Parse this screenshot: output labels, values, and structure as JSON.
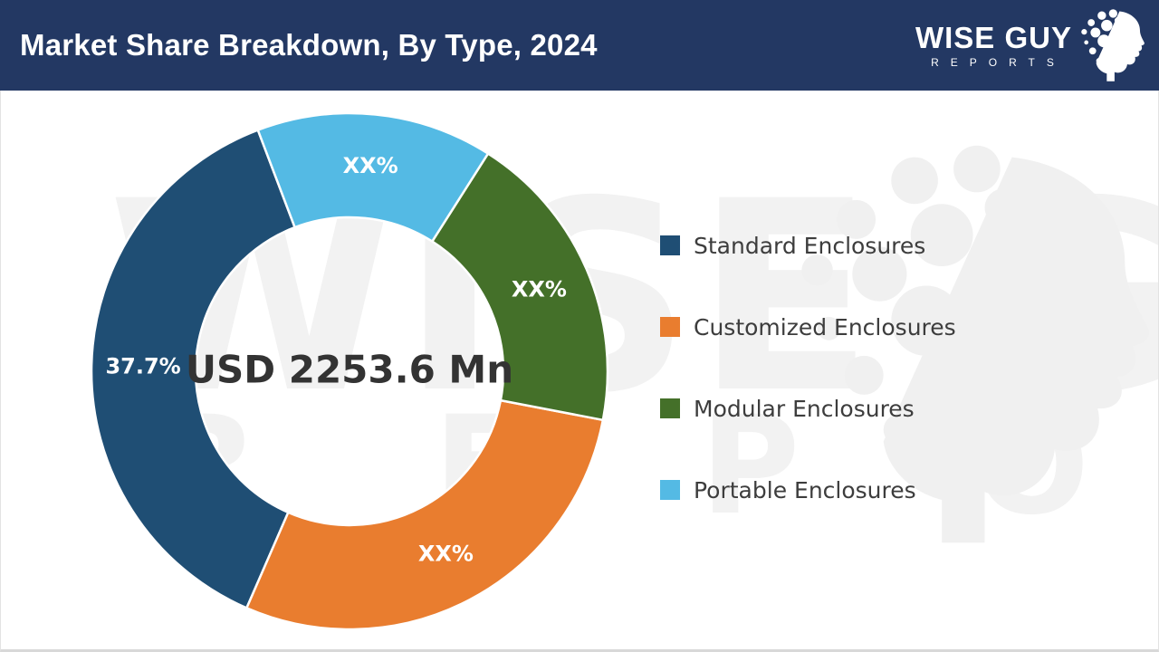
{
  "header": {
    "title": "Market Share Breakdown, By Type, 2024",
    "bg_color": "#233863",
    "logo": {
      "line1": "WISE GUY",
      "line2": "REPORTS"
    }
  },
  "chart_data": {
    "type": "donut",
    "title": "Market Share Breakdown, By Type, 2024",
    "center_label": "USD 2253.6 Mn",
    "start_angle_deg": 110.8,
    "direction": "counterclockwise",
    "legend_position": "right",
    "series": [
      {
        "name": "Standard Enclosures",
        "value_pct": 37.7,
        "label": "37.7%",
        "color": "#1F4E74"
      },
      {
        "name": "Customized Enclosures",
        "value_pct": 28.5,
        "label": "XX%",
        "color": "#E97D2F"
      },
      {
        "name": "Modular Enclosures",
        "value_pct": 19.0,
        "label": "XX%",
        "color": "#447029"
      },
      {
        "name": "Portable Enclosures",
        "value_pct": 14.8,
        "label": "XX%",
        "color": "#54BAE4"
      }
    ]
  },
  "watermark": {
    "line1": "WISE GUY",
    "line2": "R E P O R T S"
  }
}
